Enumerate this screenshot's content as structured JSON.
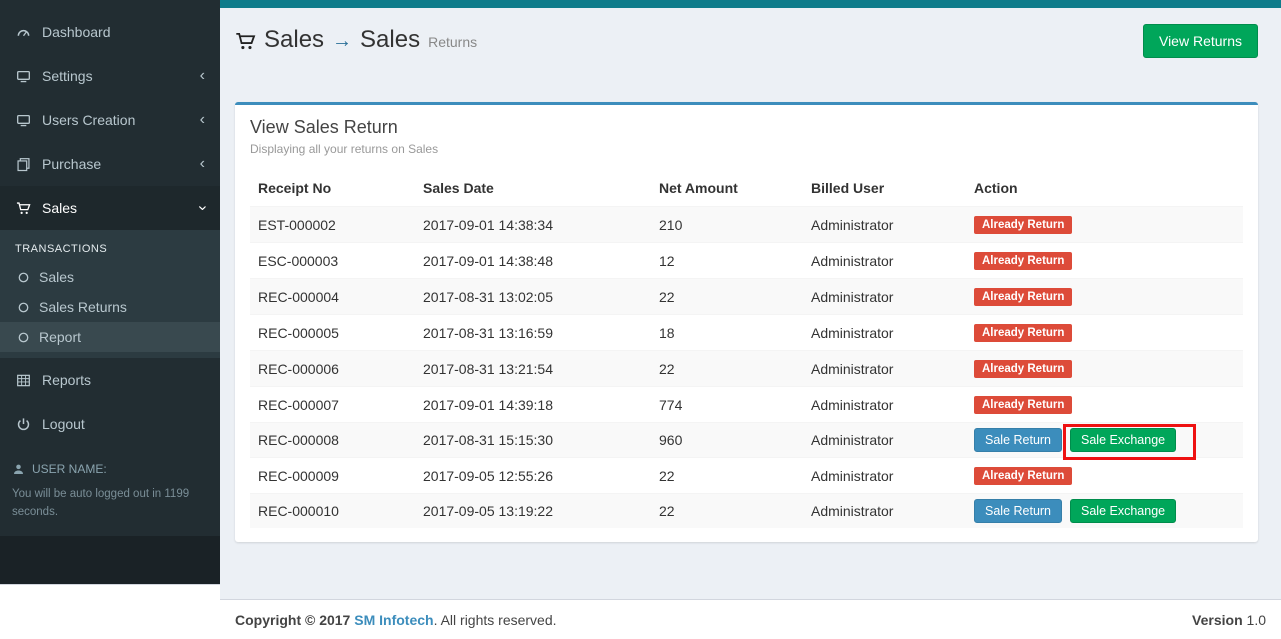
{
  "colors": {
    "sidebar_bg": "#222d32",
    "sidebar_active_bg": "#1e282c",
    "submenu_bg": "#2c3b41",
    "sidebar_foot_bg": "#1a2226",
    "sidebar_text": "#b8c7ce",
    "topbar": "#0e7c8b",
    "page_bg": "#ecf0f5",
    "primary": "#3c8dbc",
    "primary_border": "#367fa9",
    "success": "#00a65a",
    "success_border": "#008d4c",
    "danger": "#dd4b39",
    "annotation": "#ee1111",
    "border": "#d2d6de"
  },
  "sidebar": {
    "items": [
      {
        "label": "Dashboard",
        "icon": "dashboard-icon"
      },
      {
        "label": "Settings",
        "icon": "monitor-icon"
      },
      {
        "label": "Users Creation",
        "icon": "monitor-icon"
      },
      {
        "label": "Purchase",
        "icon": "copy-icon"
      },
      {
        "label": "Sales",
        "icon": "cart-icon"
      }
    ],
    "section_label": "TRANSACTIONS",
    "submenu": [
      {
        "label": "Sales",
        "icon": "circle-icon"
      },
      {
        "label": "Sales Returns",
        "icon": "circle-icon"
      },
      {
        "label": "Report",
        "icon": "circle-icon"
      }
    ],
    "reports_label": "Reports",
    "logout_label": "Logout",
    "user_label": "USER NAME:",
    "logout_notice": "You will be auto logged out in 1199 seconds."
  },
  "header": {
    "title_primary": "Sales",
    "arrow": "→",
    "title_secondary": "Sales",
    "title_suffix": "Returns",
    "view_returns_label": "View Returns"
  },
  "card": {
    "title": "View Sales Return",
    "subtitle": "Displaying all your returns on Sales"
  },
  "table": {
    "columns": [
      "Receipt No",
      "Sales Date",
      "Net Amount",
      "Billed User",
      "Action"
    ],
    "rows": [
      {
        "receipt": "EST-000002",
        "date": "2017-09-01 14:38:34",
        "amount": "210",
        "user": "Administrator",
        "actions": [
          {
            "label": "Already Return",
            "style": "danger",
            "kind": "label"
          }
        ]
      },
      {
        "receipt": "ESC-000003",
        "date": "2017-09-01 14:38:48",
        "amount": "12",
        "user": "Administrator",
        "actions": [
          {
            "label": "Already Return",
            "style": "danger",
            "kind": "label"
          }
        ]
      },
      {
        "receipt": "REC-000004",
        "date": "2017-08-31 13:02:05",
        "amount": "22",
        "user": "Administrator",
        "actions": [
          {
            "label": "Already Return",
            "style": "danger",
            "kind": "label"
          }
        ]
      },
      {
        "receipt": "REC-000005",
        "date": "2017-08-31 13:16:59",
        "amount": "18",
        "user": "Administrator",
        "actions": [
          {
            "label": "Already Return",
            "style": "danger",
            "kind": "label"
          }
        ]
      },
      {
        "receipt": "REC-000006",
        "date": "2017-08-31 13:21:54",
        "amount": "22",
        "user": "Administrator",
        "actions": [
          {
            "label": "Already Return",
            "style": "danger",
            "kind": "label"
          }
        ]
      },
      {
        "receipt": "REC-000007",
        "date": "2017-09-01 14:39:18",
        "amount": "774",
        "user": "Administrator",
        "actions": [
          {
            "label": "Already Return",
            "style": "danger",
            "kind": "label"
          }
        ]
      },
      {
        "receipt": "REC-000008",
        "date": "2017-08-31 15:15:30",
        "amount": "960",
        "user": "Administrator",
        "actions": [
          {
            "label": "Sale Return",
            "style": "primary",
            "kind": "button"
          },
          {
            "label": "Sale Exchange",
            "style": "success",
            "kind": "button",
            "highlighted": true
          }
        ]
      },
      {
        "receipt": "REC-000009",
        "date": "2017-09-05 12:55:26",
        "amount": "22",
        "user": "Administrator",
        "actions": [
          {
            "label": "Already Return",
            "style": "danger",
            "kind": "label"
          }
        ]
      },
      {
        "receipt": "REC-000010",
        "date": "2017-09-05 13:19:22",
        "amount": "22",
        "user": "Administrator",
        "actions": [
          {
            "label": "Sale Return",
            "style": "primary",
            "kind": "button"
          },
          {
            "label": "Sale Exchange",
            "style": "success",
            "kind": "button"
          }
        ]
      }
    ]
  },
  "footer": {
    "copyright_prefix": "Copyright © 2017",
    "company": "SM Infotech",
    "copyright_suffix": ". All rights reserved.",
    "version_label": "Version",
    "version_value": "1.0"
  }
}
